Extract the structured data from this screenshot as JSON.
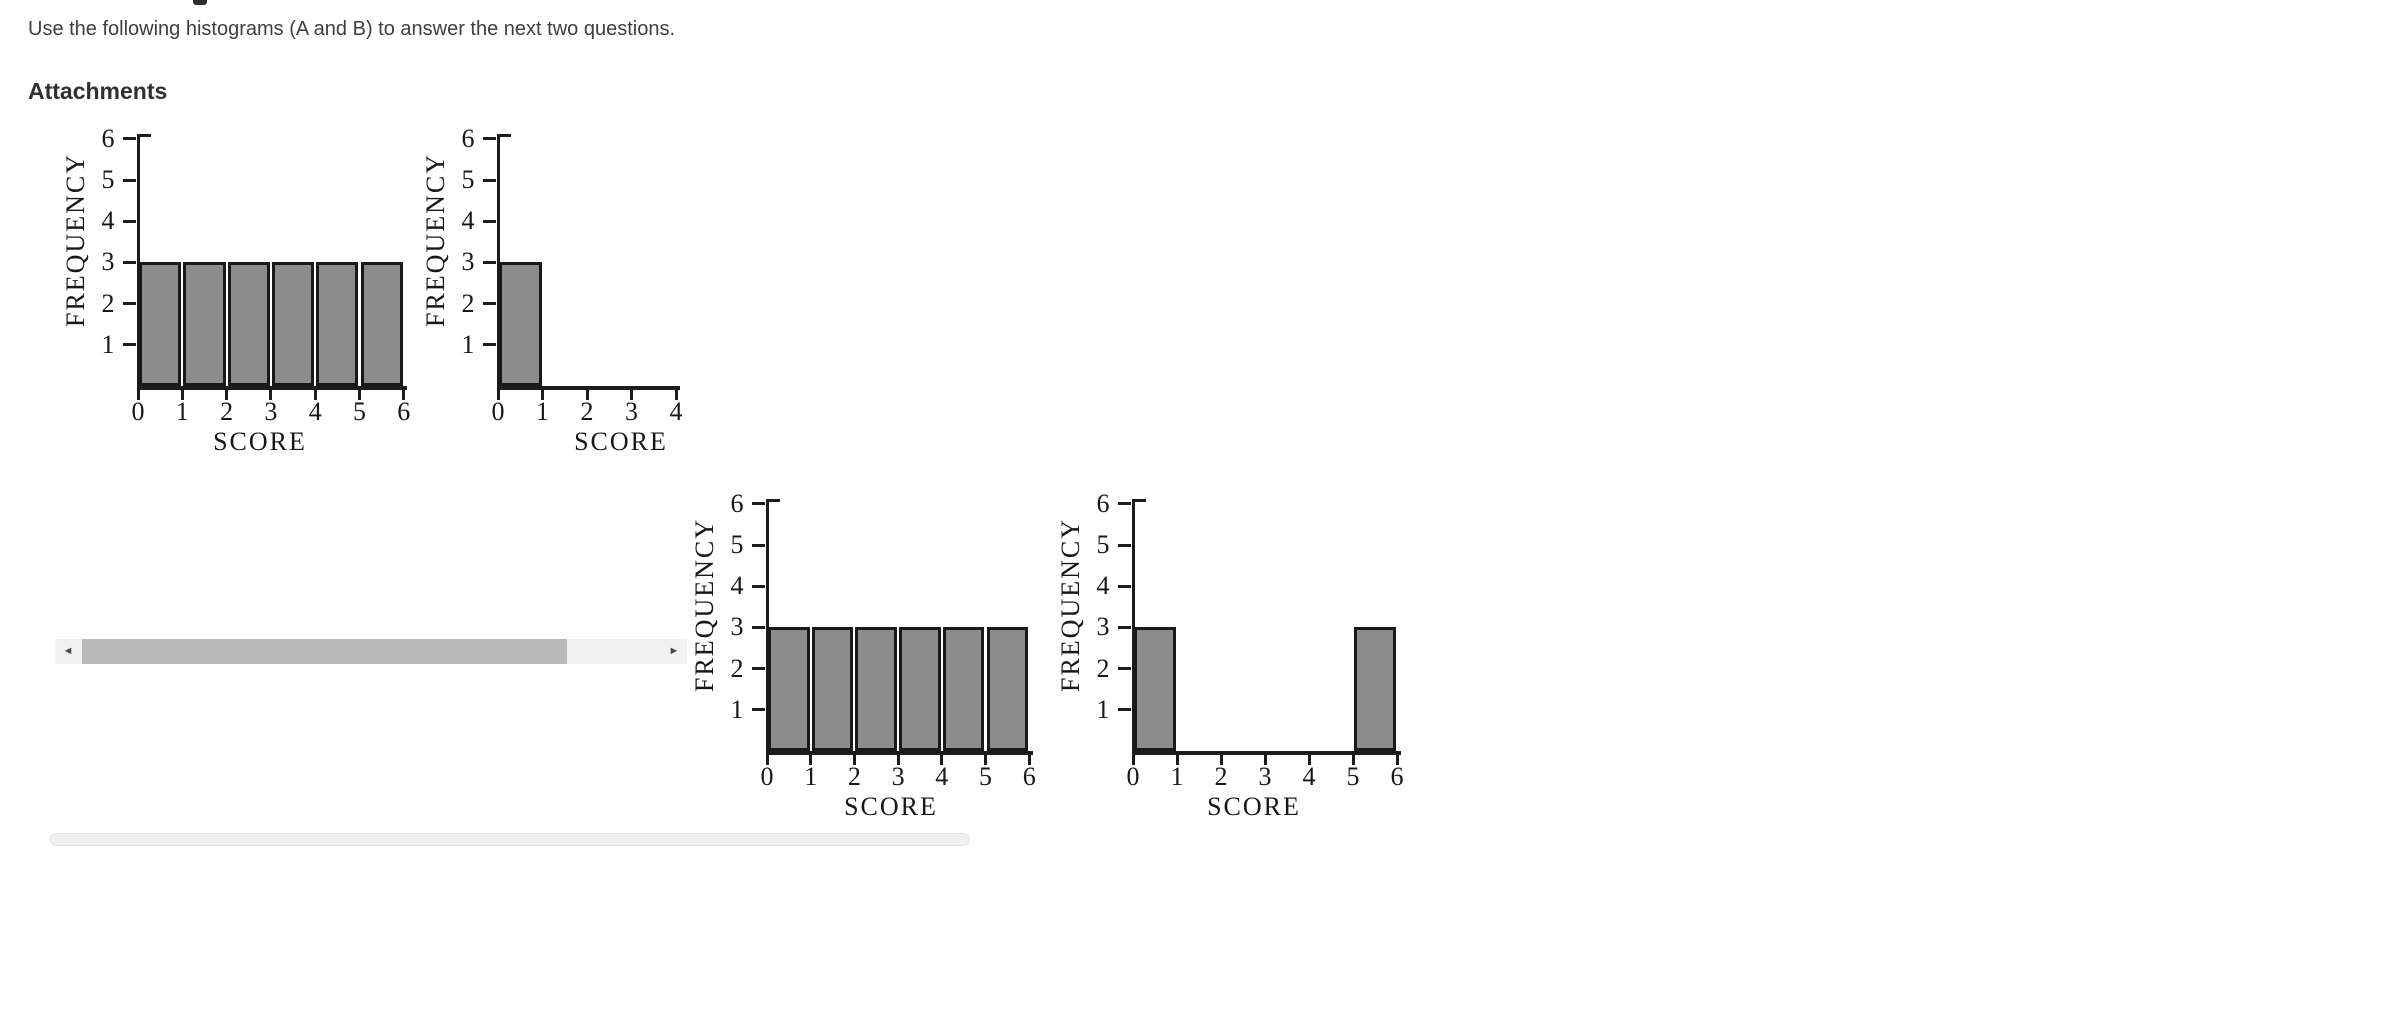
{
  "page": {
    "prompt": "Use the following histograms (A and B) to answer the next two questions.",
    "attachments_label": "Attachments"
  },
  "scrollbar": {
    "left_arrow": "◄",
    "right_arrow": "►"
  },
  "chart_data": [
    {
      "id": "histogram-a-uniform",
      "type": "bar",
      "title": "",
      "xlabel": "SCORE",
      "ylabel": "FREQUENCY",
      "xlim": [
        0,
        6
      ],
      "ylim": [
        0,
        6
      ],
      "x_ticks": [
        0,
        1,
        2,
        3,
        4,
        5,
        6
      ],
      "y_ticks": [
        1,
        2,
        3,
        4,
        5,
        6
      ],
      "bars": [
        {
          "x0": 0,
          "x1": 1,
          "freq": 3
        },
        {
          "x0": 1,
          "x1": 2,
          "freq": 3
        },
        {
          "x0": 2,
          "x1": 3,
          "freq": 3
        },
        {
          "x0": 3,
          "x1": 4,
          "freq": 3
        },
        {
          "x0": 4,
          "x1": 5,
          "freq": 3
        },
        {
          "x0": 5,
          "x1": 6,
          "freq": 3
        }
      ],
      "bar_color": "#8c8c8c",
      "bar_border_color": "#191919",
      "grid": false
    },
    {
      "id": "histogram-a-single-bar",
      "type": "bar",
      "title": "",
      "xlabel": "SCORE",
      "ylabel": "FREQUENCY",
      "xlim": [
        0,
        4
      ],
      "ylim": [
        0,
        6
      ],
      "x_ticks": [
        0,
        1,
        2,
        3,
        4
      ],
      "y_ticks": [
        1,
        2,
        3,
        4,
        5,
        6
      ],
      "bars": [
        {
          "x0": 0,
          "x1": 1,
          "freq": 3
        }
      ],
      "bar_color": "#8c8c8c",
      "bar_border_color": "#191919",
      "grid": false
    },
    {
      "id": "histogram-b-uniform",
      "type": "bar",
      "title": "",
      "xlabel": "SCORE",
      "ylabel": "FREQUENCY",
      "xlim": [
        0,
        6
      ],
      "ylim": [
        0,
        6
      ],
      "x_ticks": [
        0,
        1,
        2,
        3,
        4,
        5,
        6
      ],
      "y_ticks": [
        1,
        2,
        3,
        4,
        5,
        6
      ],
      "bars": [
        {
          "x0": 0,
          "x1": 1,
          "freq": 3
        },
        {
          "x0": 1,
          "x1": 2,
          "freq": 3
        },
        {
          "x0": 2,
          "x1": 3,
          "freq": 3
        },
        {
          "x0": 3,
          "x1": 4,
          "freq": 3
        },
        {
          "x0": 4,
          "x1": 5,
          "freq": 3
        },
        {
          "x0": 5,
          "x1": 6,
          "freq": 3
        }
      ],
      "bar_color": "#8c8c8c",
      "bar_border_color": "#191919",
      "grid": false
    },
    {
      "id": "histogram-b-u-shaped",
      "type": "bar",
      "title": "",
      "xlabel": "SCORE",
      "ylabel": "FREQUENCY",
      "xlim": [
        0,
        6
      ],
      "ylim": [
        0,
        6
      ],
      "x_ticks": [
        0,
        1,
        2,
        3,
        4,
        5,
        6
      ],
      "y_ticks": [
        1,
        2,
        3,
        4,
        5,
        6
      ],
      "bars": [
        {
          "x0": 0,
          "x1": 1,
          "freq": 3
        },
        {
          "x0": 5,
          "x1": 6,
          "freq": 3
        }
      ],
      "bar_color": "#8c8c8c",
      "bar_border_color": "#191919",
      "grid": false
    }
  ]
}
